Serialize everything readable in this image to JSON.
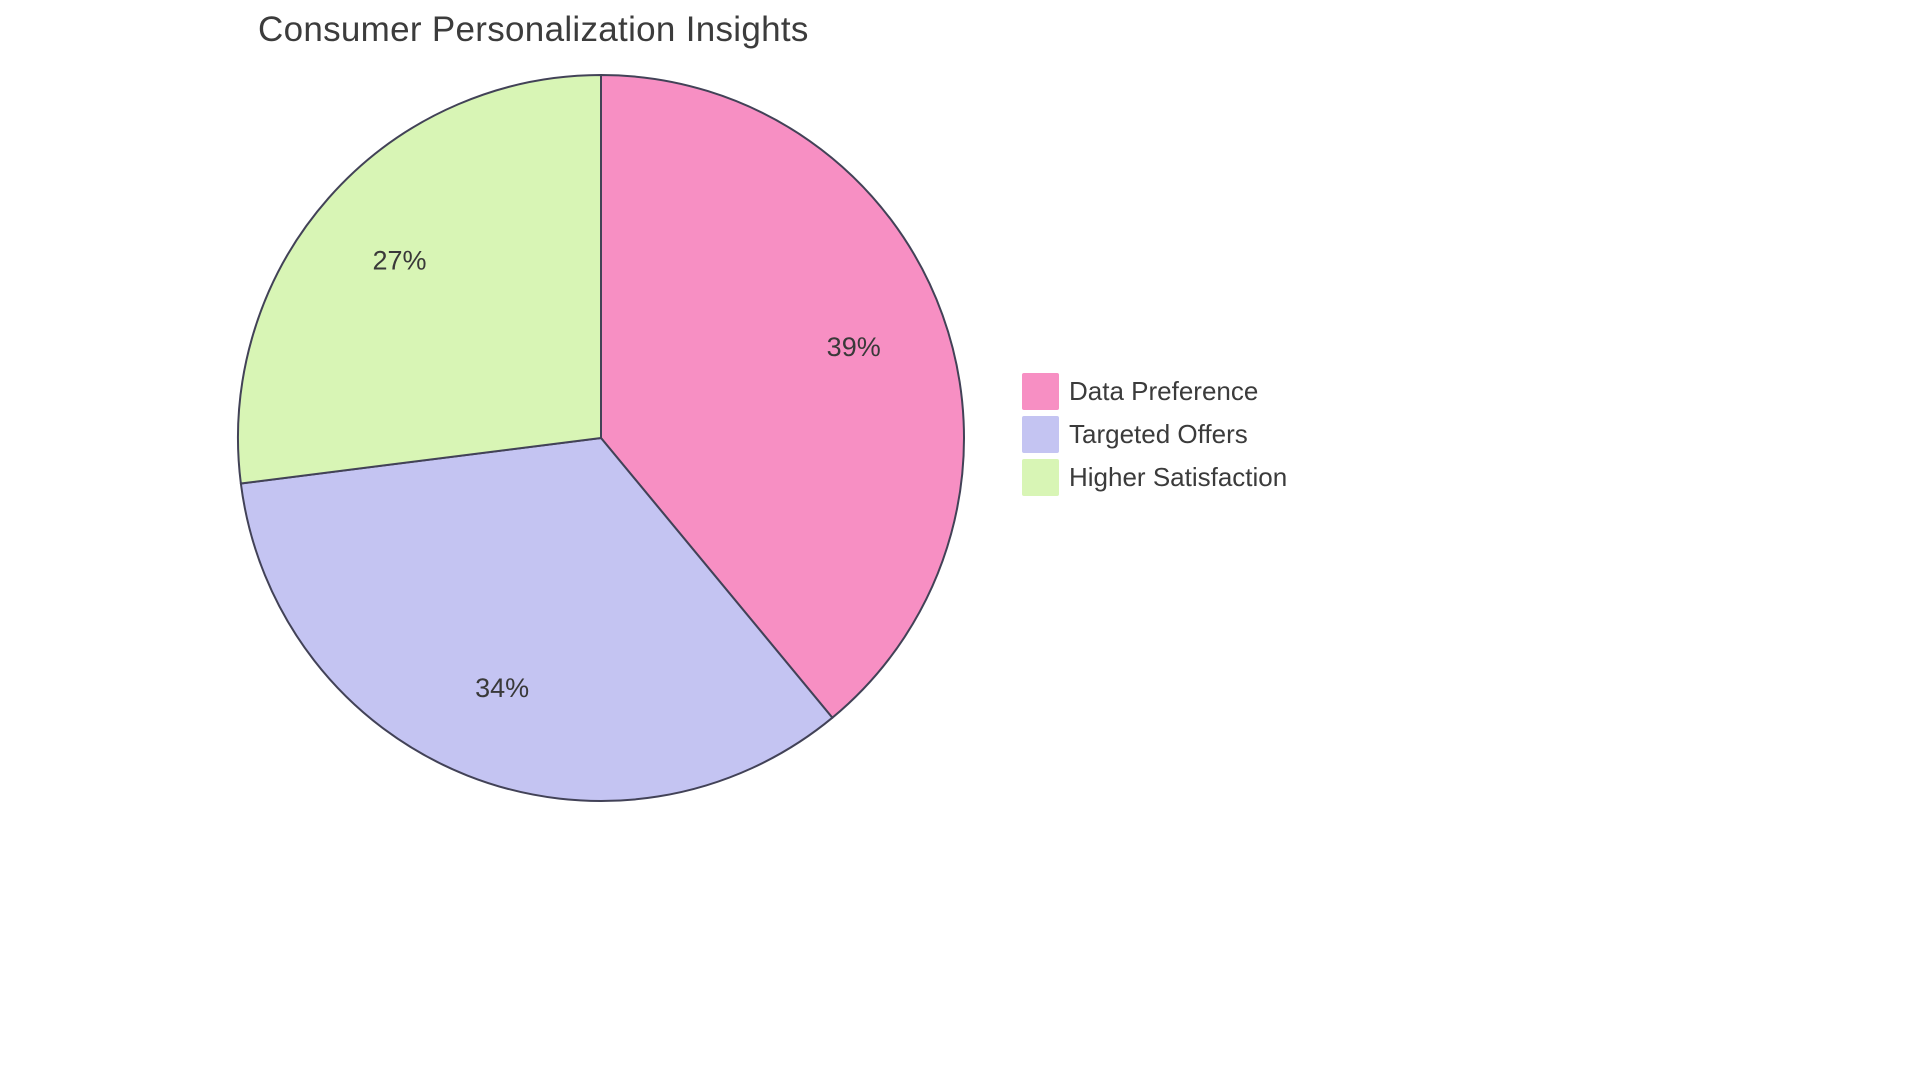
{
  "page": {
    "background_color": "#ffffff"
  },
  "chart_data": {
    "type": "pie",
    "title": "Consumer Personalization Insights",
    "categories": [
      "Data Preference",
      "Targeted Offers",
      "Higher Satisfaction"
    ],
    "values": [
      39,
      34,
      27
    ],
    "labels": [
      "39%",
      "34%",
      "27%"
    ],
    "unit": "%",
    "colors": [
      "#F78FC3",
      "#C4C4F2",
      "#D8F5B5"
    ],
    "stroke_color": "#424257",
    "stroke_width": 2,
    "start_angle_deg": 0,
    "direction": "clockwise",
    "legend_position": "right",
    "legend": [
      {
        "label": "Data Preference",
        "color": "#F78FC3"
      },
      {
        "label": "Targeted Offers",
        "color": "#C4C4F2"
      },
      {
        "label": "Higher Satisfaction",
        "color": "#D8F5B5"
      }
    ]
  }
}
